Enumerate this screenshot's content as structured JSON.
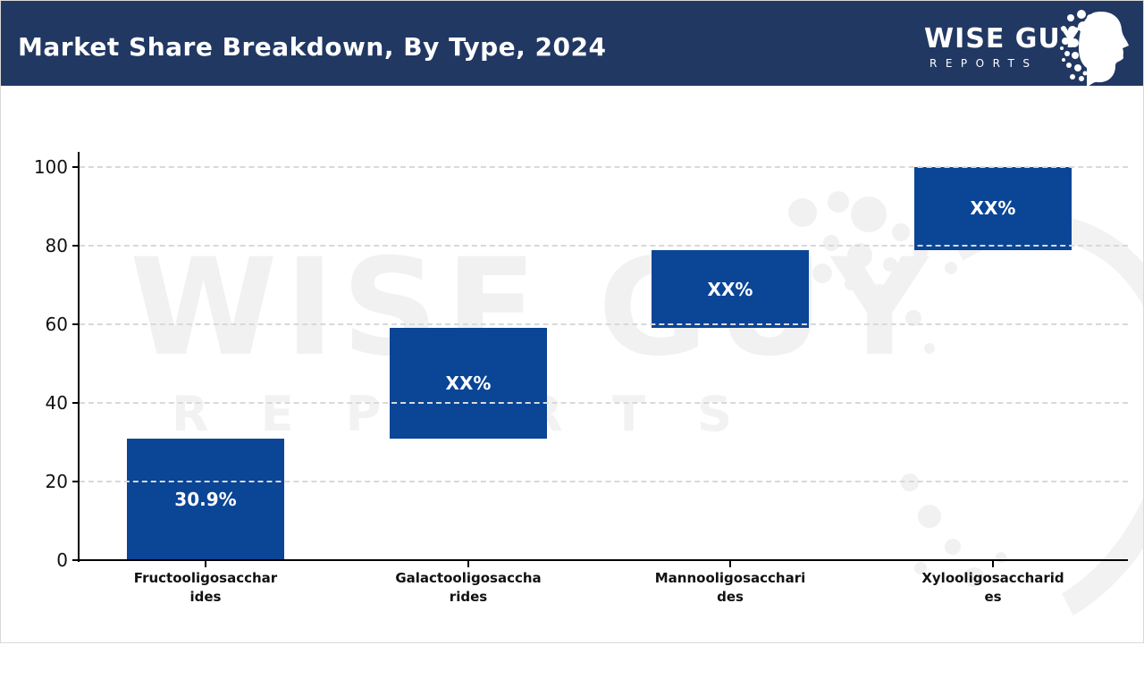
{
  "header": {
    "title": "Market Share Breakdown, By Type, 2024",
    "logo": {
      "name_line": "WISE GUY",
      "sub_line": "REPORTS"
    }
  },
  "watermark": {
    "line1": "WISE GUY",
    "line2": "REPORTS"
  },
  "colors": {
    "header_bg": "#213863",
    "bar": "#0a4596",
    "bar_label": "#ffffff",
    "grid": "#d9d9d9",
    "axis": "#000000",
    "watermark": "#f1f1f1"
  },
  "chart_data": {
    "type": "bar",
    "subtype": "floating-stacked-waterfall",
    "title": "Market Share Breakdown, By Type, 2024",
    "categories": [
      "Fructooligosaccharides",
      "Galactooligosaccharides",
      "Mannooligosaccharides",
      "Xylooligosaccharides"
    ],
    "category_wrap": [
      [
        "Fructooligosacchar",
        "ides"
      ],
      [
        "Galactooligosaccha",
        "rides"
      ],
      [
        "Mannooligosacchari",
        "des"
      ],
      [
        "Xylooligosaccharid",
        "es"
      ]
    ],
    "segments": [
      {
        "category": "Fructooligosaccharides",
        "start": 0,
        "end": 30.9,
        "label": "30.9%"
      },
      {
        "category": "Galactooligosaccharides",
        "start": 30.9,
        "end": 59.0,
        "label": "XX%"
      },
      {
        "category": "Mannooligosaccharides",
        "start": 59.0,
        "end": 78.9,
        "label": "XX%"
      },
      {
        "category": "Xylooligosaccharides",
        "start": 78.9,
        "end": 100.0,
        "label": "XX%"
      }
    ],
    "yticks": [
      0,
      20,
      40,
      60,
      80,
      100
    ],
    "ylim": [
      0,
      104
    ],
    "xlabel": "",
    "ylabel": "",
    "grid": "horizontal-dashed",
    "legend": "none",
    "bar_color": "#0a4596",
    "value_label_color": "#ffffff"
  }
}
